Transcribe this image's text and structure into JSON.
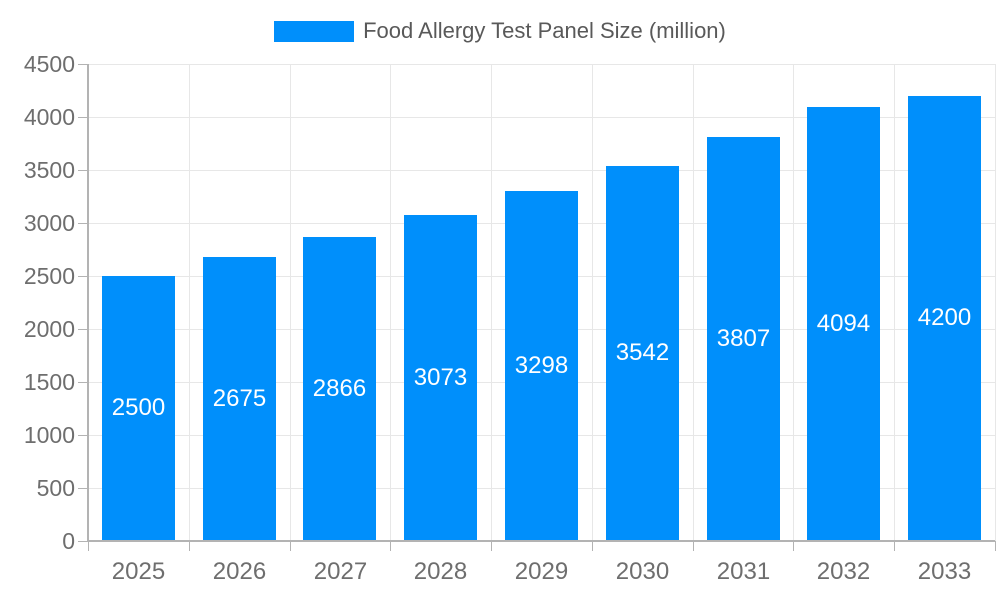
{
  "chart_data": {
    "type": "bar",
    "title": "Food Allergy Test Panel Size (million)",
    "categories": [
      "2025",
      "2026",
      "2027",
      "2028",
      "2029",
      "2030",
      "2031",
      "2032",
      "2033"
    ],
    "series": [
      {
        "name": "Food Allergy Test Panel Size (million)",
        "values": [
          2500,
          2675,
          2866,
          3073,
          3298,
          3542,
          3807,
          4094,
          4200
        ]
      }
    ],
    "xlabel": "",
    "ylabel": "",
    "ylim": [
      0,
      4500
    ],
    "ytick_step": 500,
    "ytick_labels": [
      "0",
      "500",
      "1000",
      "1500",
      "2000",
      "2500",
      "3000",
      "3500",
      "4000",
      "4500"
    ],
    "legend_position": "top",
    "grid": true,
    "value_labels_position": "inside-center"
  },
  "legend": {
    "label": "Food Allergy Test Panel Size (million)"
  },
  "colors": {
    "bar": "#008FFB",
    "gridline": "#e7e7e7",
    "axis_line": "#b3b3b3",
    "tick": "#b3b3b3",
    "axis_text": "#6e6e6e",
    "legend_text": "#595959",
    "value_text": "#ffffff",
    "background": "#ffffff"
  }
}
